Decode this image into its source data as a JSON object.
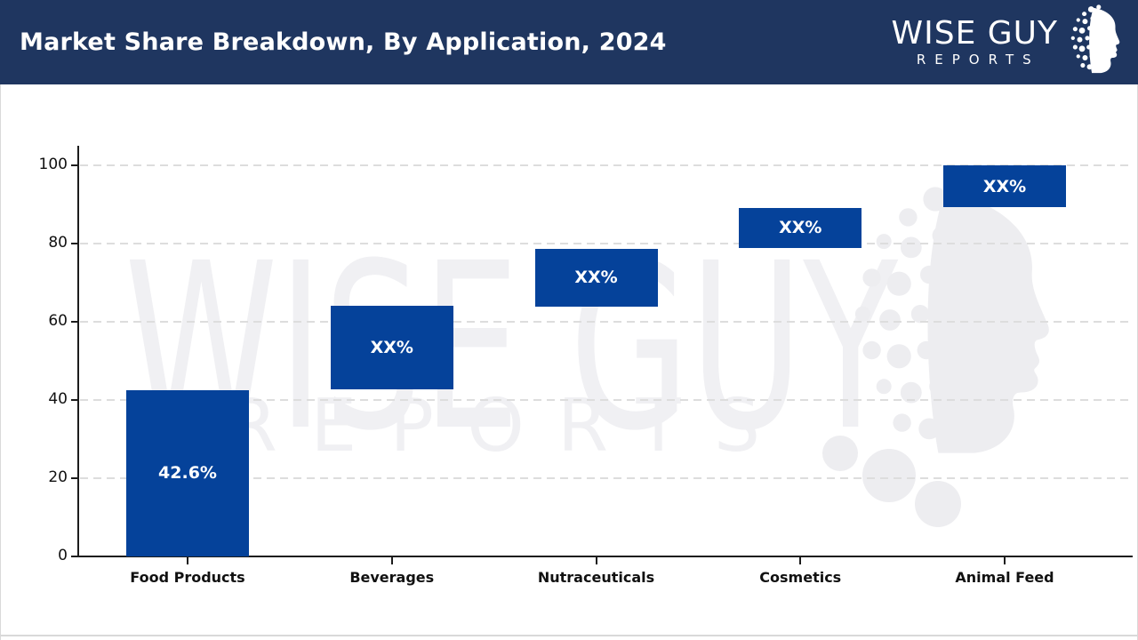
{
  "header": {
    "title": "Market Share Breakdown, By Application, 2024",
    "bg_color": "#1f3660",
    "logo": {
      "line1": "WISE GUY",
      "line2": "REPORTS"
    }
  },
  "watermark": {
    "line1": "WISE GUY",
    "line2": "REPORTS",
    "color": "#efeff2"
  },
  "chart_data": {
    "type": "bar",
    "subtype": "waterfall",
    "title": "Market Share Breakdown, By Application, 2024",
    "categories": [
      "Food Products",
      "Beverages",
      "Nutraceuticals",
      "Cosmetics",
      "Animal Feed"
    ],
    "segments": [
      {
        "category": "Food Products",
        "start": 0,
        "end": 42.6,
        "label": "42.6%"
      },
      {
        "category": "Beverages",
        "start": 42.7,
        "end": 64.1,
        "label": "XX%"
      },
      {
        "category": "Nutraceuticals",
        "start": 63.9,
        "end": 78.6,
        "label": "XX%"
      },
      {
        "category": "Cosmetics",
        "start": 78.9,
        "end": 89.1,
        "label": "XX%"
      },
      {
        "category": "Animal Feed",
        "start": 89.3,
        "end": 100,
        "label": "XX%"
      }
    ],
    "xlabel": "",
    "ylabel": "",
    "ylim": [
      0,
      100
    ],
    "yticks": [
      0,
      20,
      40,
      60,
      80,
      100
    ],
    "grid": "horizontal-dashed",
    "grid_color": "#dddddd",
    "axis_color": "#1c1c1c",
    "bar_color": "#05429a",
    "bar_label_color": "#ffffff",
    "legend": "none"
  }
}
